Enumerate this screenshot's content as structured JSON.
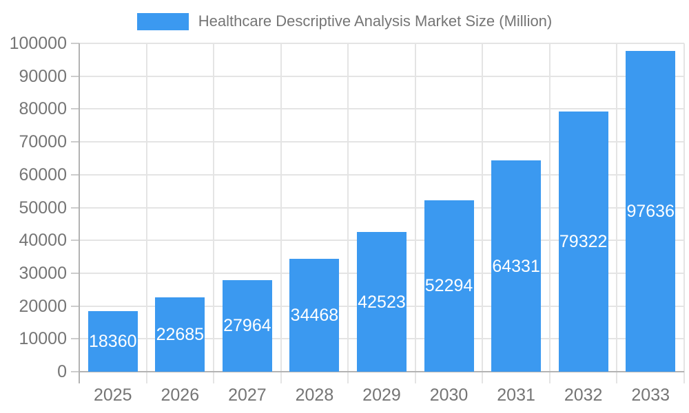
{
  "chart_data": {
    "type": "bar",
    "title": "Healthcare Descriptive Analysis Market Size (Million)",
    "categories": [
      "2025",
      "2026",
      "2027",
      "2028",
      "2029",
      "2030",
      "2031",
      "2032",
      "2033"
    ],
    "values": [
      18360,
      22685,
      27964,
      34468,
      42523,
      52294,
      64331,
      79322,
      97636
    ],
    "xlabel": "",
    "ylabel": "",
    "ylim": [
      0,
      100000
    ],
    "ytick_step": 10000,
    "yticks": [
      0,
      10000,
      20000,
      30000,
      40000,
      50000,
      60000,
      70000,
      80000,
      90000,
      100000
    ],
    "grid": true,
    "legend_position": "top",
    "colors": {
      "bar": "#3b99f0",
      "value_label": "#ffffff",
      "axis_text": "#757575",
      "grid_line": "#e4e4e4",
      "axis_line": "#b3b3b3"
    }
  }
}
